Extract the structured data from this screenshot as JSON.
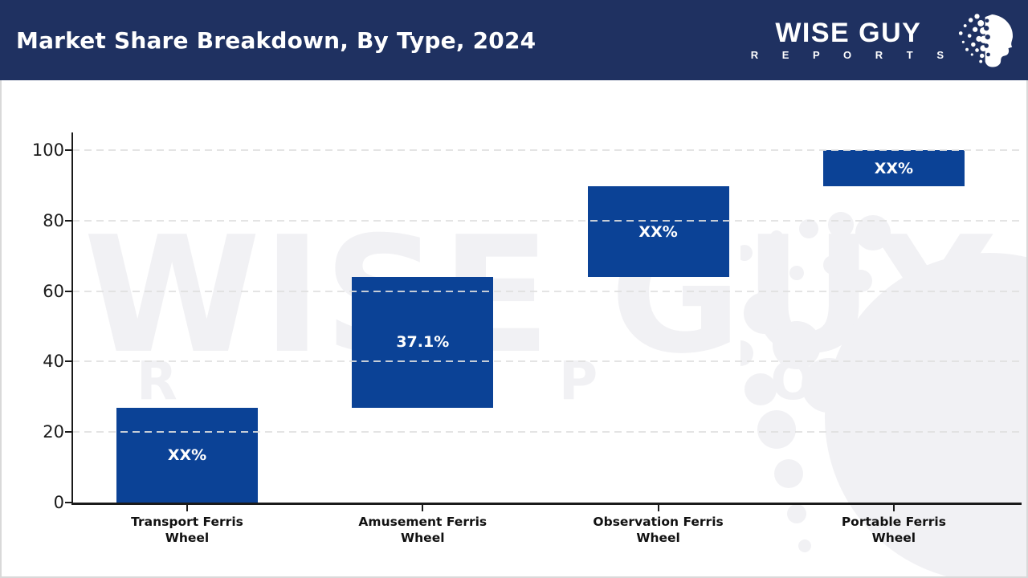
{
  "header": {
    "title": "Market Share Breakdown, By Type, 2024",
    "logo": {
      "line1": "WISE GUY",
      "line2": "R E P O R T S"
    }
  },
  "watermark": {
    "line1": "WISE GUY",
    "line2": "R E P O R T S"
  },
  "colors": {
    "header_bg": "#1f3161",
    "bar": "#0b4296",
    "bar_label": "#ffffff",
    "grid": "#e0e0e0",
    "axis": "#1a1a1a",
    "tick_label": "#1a1a1a",
    "watermark": "#f1f1f4",
    "border": "#d9d9d9"
  },
  "chart_data": {
    "type": "bar",
    "subtype": "waterfall",
    "title": "Market Share Breakdown, By Type, 2024",
    "categories": [
      "Transport Ferris Wheel",
      "Amusement Ferris Wheel",
      "Observation Ferris Wheel",
      "Portable Ferris Wheel"
    ],
    "segments": [
      {
        "category": "Transport Ferris Wheel",
        "start": 0,
        "end": 26.9,
        "value_pct": 26.9,
        "label": "XX%"
      },
      {
        "category": "Amusement Ferris Wheel",
        "start": 26.9,
        "end": 64.0,
        "value_pct": 37.1,
        "label": "37.1%"
      },
      {
        "category": "Observation Ferris Wheel",
        "start": 64.0,
        "end": 89.7,
        "value_pct": 25.7,
        "label": "XX%"
      },
      {
        "category": "Portable Ferris Wheel",
        "start": 89.7,
        "end": 100.0,
        "value_pct": 10.3,
        "label": "XX%"
      }
    ],
    "xlabel": "",
    "ylabel": "",
    "ylim": [
      0,
      100
    ],
    "yticks": [
      0,
      20,
      40,
      60,
      80,
      100
    ],
    "grid": {
      "horizontal": true,
      "style": "dashed"
    },
    "legend": "none"
  }
}
